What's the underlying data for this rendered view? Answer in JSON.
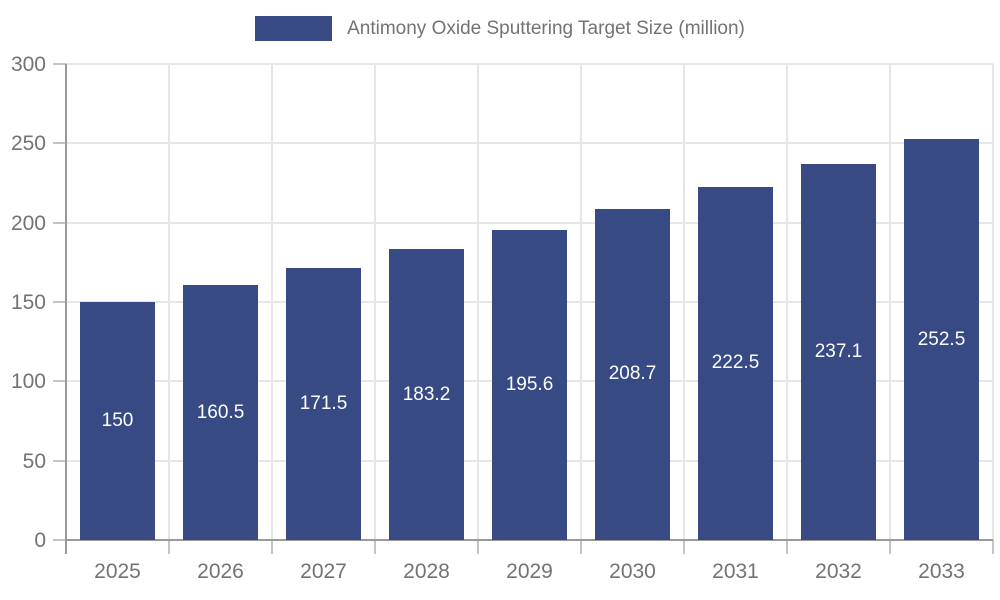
{
  "chart_data": {
    "type": "bar",
    "legend_label": "Antimony Oxide Sputtering Target Size (million)",
    "legend_position": "top-center",
    "categories": [
      "2025",
      "2026",
      "2027",
      "2028",
      "2029",
      "2030",
      "2031",
      "2032",
      "2033"
    ],
    "series": [
      {
        "name": "Antimony Oxide Sputtering Target Size (million)",
        "values": [
          150,
          160.5,
          171.5,
          183.2,
          195.6,
          208.7,
          222.5,
          237.1,
          252.5
        ]
      }
    ],
    "value_labels": [
      "150",
      "160.5",
      "171.5",
      "183.2",
      "195.6",
      "208.7",
      "222.5",
      "237.1",
      "252.5"
    ],
    "xlabel": "",
    "ylabel": "",
    "ylim": [
      0,
      300
    ],
    "yticks": [
      0,
      50,
      100,
      150,
      200,
      250,
      300
    ],
    "grid": true,
    "colors": {
      "bar": "#374a83",
      "value_label": "#ffffff",
      "axis_text": "#737373",
      "gridline": "#e6e6e6",
      "axis_line": "#9a9a9a",
      "tick": "#c4c4c4",
      "background": "#ffffff"
    }
  }
}
